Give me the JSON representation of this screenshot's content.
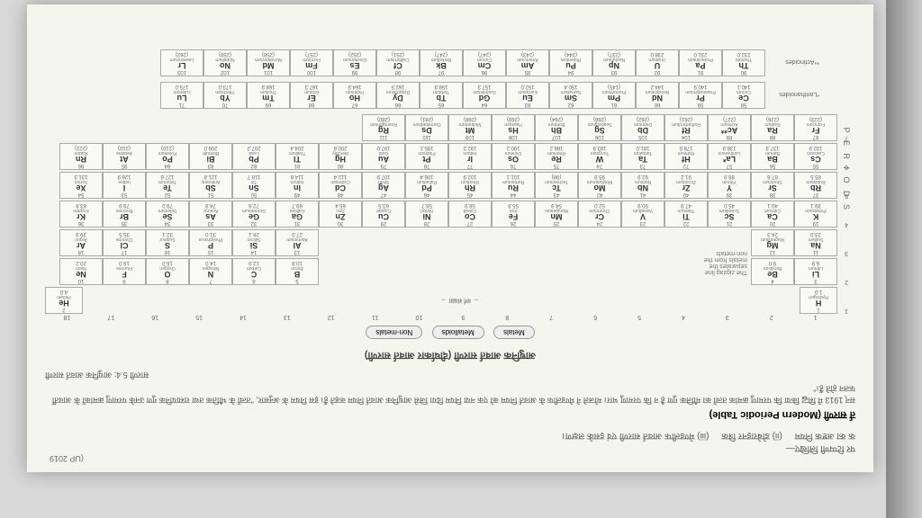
{
  "header": {
    "right_ref": "(UP 2019",
    "line1": "पर टिप्पणी लिखिए—",
    "line2_a": "क का अष्टक नियम",
    "line2_b": "(ii) डोबेराइनर त्रिक",
    "line2_c": "(iii) मेण्डलीफ आवर्त सारणी एवं इसके लक्षण।"
  },
  "section": {
    "heading": "र्त सारणी (Modern Periodic Table)",
    "para": "सन् 1913 में सिद्ध किया कि परमाणु क्रमांक तत्वों का मौलिक गुण है न कि परमाणु भार। मोजले ने मेण्डलीफ के आवर्त नियम को एक नया नियम दिया जिसे आधुनिक आवर्त नियम कहते हैं। इस नियम के अनुसार, \"तत्वों के भौतिक तथा रासायनिक गुण उनके परमाणु क्रमांकों के आवर्ती फलन होते हैं।\"",
    "table_title": "सारणी 5.4: आधुनिक आवर्त सारणी",
    "periodic_title": "आधुनिक आवर्त सारणी (दीर्घाकार आवर्त सारणी)"
  },
  "legend": {
    "metals": "Metals",
    "metalloids": "Metalloids",
    "nonmetals": "Non-metals"
  },
  "zigzag": "The zigzag line separates the metals from the non-metals",
  "side": {
    "periods": "P E R I O D S",
    "group_label": "वर्ग संख्या",
    "lanth": "*Lanthanoides",
    "actin": "**Actinoides",
    "metals_label": "Metals",
    "nonmetals_label": "Non-Metals"
  },
  "groups": [
    "1",
    "2",
    "3",
    "4",
    "5",
    "6",
    "7",
    "8",
    "9",
    "10",
    "11",
    "12",
    "13",
    "14",
    "15",
    "16",
    "17",
    "18"
  ],
  "periods": [
    "1",
    "2",
    "3",
    "4",
    "5",
    "6",
    "7"
  ],
  "elements": {
    "r1": [
      {
        "n": "1",
        "s": "H",
        "m": "Hydrogen",
        "w": "1.0"
      },
      null,
      null,
      null,
      null,
      null,
      null,
      null,
      null,
      null,
      null,
      null,
      null,
      null,
      null,
      null,
      null,
      {
        "n": "2",
        "s": "He",
        "m": "Helium",
        "w": "4.0"
      }
    ],
    "r2": [
      {
        "n": "3",
        "s": "Li",
        "m": "Lithium",
        "w": "6.9"
      },
      {
        "n": "4",
        "s": "Be",
        "m": "Beryllium",
        "w": "9.0"
      },
      null,
      null,
      null,
      null,
      null,
      null,
      null,
      null,
      null,
      null,
      {
        "n": "5",
        "s": "B",
        "m": "Boron",
        "w": "10.8"
      },
      {
        "n": "6",
        "s": "C",
        "m": "Carbon",
        "w": "12.0"
      },
      {
        "n": "7",
        "s": "N",
        "m": "Nitrogen",
        "w": "14.0"
      },
      {
        "n": "8",
        "s": "O",
        "m": "Oxygen",
        "w": "16.0"
      },
      {
        "n": "9",
        "s": "F",
        "m": "Fluorine",
        "w": "19.0"
      },
      {
        "n": "10",
        "s": "Ne",
        "m": "Neon",
        "w": "20.2"
      }
    ],
    "r3": [
      {
        "n": "11",
        "s": "Na",
        "m": "Sodium",
        "w": "23.0"
      },
      {
        "n": "12",
        "s": "Mg",
        "m": "Magnesium",
        "w": "24.3"
      },
      null,
      null,
      null,
      null,
      null,
      null,
      null,
      null,
      null,
      null,
      {
        "n": "13",
        "s": "Al",
        "m": "Aluminium",
        "w": "27.0"
      },
      {
        "n": "14",
        "s": "Si",
        "m": "Silicon",
        "w": "28.1"
      },
      {
        "n": "15",
        "s": "P",
        "m": "Phosphorus",
        "w": "31.0"
      },
      {
        "n": "16",
        "s": "S",
        "m": "Sulphur",
        "w": "32.1"
      },
      {
        "n": "17",
        "s": "Cl",
        "m": "Chlorine",
        "w": "35.5"
      },
      {
        "n": "18",
        "s": "Ar",
        "m": "Argon",
        "w": "39.9"
      }
    ],
    "r4": [
      {
        "n": "19",
        "s": "K",
        "m": "Potassium",
        "w": "39.1"
      },
      {
        "n": "20",
        "s": "Ca",
        "m": "Calcium",
        "w": "40.1"
      },
      {
        "n": "21",
        "s": "Sc",
        "m": "Scandium",
        "w": "45.0"
      },
      {
        "n": "22",
        "s": "Ti",
        "m": "Titanium",
        "w": "47.9"
      },
      {
        "n": "23",
        "s": "V",
        "m": "Vanadium",
        "w": "50.9"
      },
      {
        "n": "24",
        "s": "Cr",
        "m": "Chromium",
        "w": "52.0"
      },
      {
        "n": "25",
        "s": "Mn",
        "m": "Manganese",
        "w": "54.9"
      },
      {
        "n": "26",
        "s": "Fe",
        "m": "Iron",
        "w": "55.8"
      },
      {
        "n": "27",
        "s": "Co",
        "m": "Cobalt",
        "w": "58.9"
      },
      {
        "n": "28",
        "s": "Ni",
        "m": "Nickel",
        "w": "58.7"
      },
      {
        "n": "29",
        "s": "Cu",
        "m": "Copper",
        "w": "63.5"
      },
      {
        "n": "30",
        "s": "Zn",
        "m": "Zinc",
        "w": "65.4"
      },
      {
        "n": "31",
        "s": "Ga",
        "m": "Gallium",
        "w": "69.7"
      },
      {
        "n": "32",
        "s": "Ge",
        "m": "Germanium",
        "w": "72.6"
      },
      {
        "n": "33",
        "s": "As",
        "m": "Arsenic",
        "w": "74.9"
      },
      {
        "n": "34",
        "s": "Se",
        "m": "Selenium",
        "w": "79.0"
      },
      {
        "n": "35",
        "s": "Br",
        "m": "Bromine",
        "w": "79.9"
      },
      {
        "n": "36",
        "s": "Kr",
        "m": "Krypton",
        "w": "83.8"
      }
    ],
    "r5": [
      {
        "n": "37",
        "s": "Rb",
        "m": "Rubidium",
        "w": "85.5"
      },
      {
        "n": "38",
        "s": "Sr",
        "m": "Strontium",
        "w": "87.6"
      },
      {
        "n": "39",
        "s": "Y",
        "m": "Yttrium",
        "w": "88.9"
      },
      {
        "n": "40",
        "s": "Zr",
        "m": "Zirconium",
        "w": "91.2"
      },
      {
        "n": "41",
        "s": "Nb",
        "m": "Niobium",
        "w": "92.9"
      },
      {
        "n": "42",
        "s": "Mo",
        "m": "Molybdenum",
        "w": "95.9"
      },
      {
        "n": "43",
        "s": "Tc",
        "m": "Technetium",
        "w": "(98)"
      },
      {
        "n": "44",
        "s": "Ru",
        "m": "Ruthenium",
        "w": "101.1"
      },
      {
        "n": "45",
        "s": "Rh",
        "m": "Rhodium",
        "w": "102.9"
      },
      {
        "n": "46",
        "s": "Pd",
        "m": "Palladium",
        "w": "106.4"
      },
      {
        "n": "47",
        "s": "Ag",
        "m": "Silver",
        "w": "107.9"
      },
      {
        "n": "48",
        "s": "Cd",
        "m": "Cadmium",
        "w": "112.4"
      },
      {
        "n": "49",
        "s": "In",
        "m": "Indium",
        "w": "114.8"
      },
      {
        "n": "50",
        "s": "Sn",
        "m": "Tin",
        "w": "118.7"
      },
      {
        "n": "51",
        "s": "Sb",
        "m": "Antimony",
        "w": "121.8"
      },
      {
        "n": "52",
        "s": "Te",
        "m": "Tellurium",
        "w": "127.6"
      },
      {
        "n": "53",
        "s": "I",
        "m": "Iodine",
        "w": "126.9"
      },
      {
        "n": "54",
        "s": "Xe",
        "m": "Xenon",
        "w": "131.3"
      }
    ],
    "r6": [
      {
        "n": "55",
        "s": "Cs",
        "m": "Caesium",
        "w": "132.9"
      },
      {
        "n": "56",
        "s": "Ba",
        "m": "Barium",
        "w": "137.3"
      },
      {
        "n": "57",
        "s": "La*",
        "m": "Lanthanum",
        "w": "138.9"
      },
      {
        "n": "72",
        "s": "Hf",
        "m": "Hafnium",
        "w": "178.5"
      },
      {
        "n": "73",
        "s": "Ta",
        "m": "Tantalum",
        "w": "181.0"
      },
      {
        "n": "74",
        "s": "W",
        "m": "Tungsten",
        "w": "183.9"
      },
      {
        "n": "75",
        "s": "Re",
        "m": "Rhenium",
        "w": "186.2"
      },
      {
        "n": "76",
        "s": "Os",
        "m": "Osmium",
        "w": "190.2"
      },
      {
        "n": "77",
        "s": "Ir",
        "m": "Iridium",
        "w": "192.2"
      },
      {
        "n": "78",
        "s": "Pt",
        "m": "Platinum",
        "w": "195.1"
      },
      {
        "n": "79",
        "s": "Au",
        "m": "Gold",
        "w": "197.0"
      },
      {
        "n": "80",
        "s": "Hg",
        "m": "Mercury",
        "w": "200.6"
      },
      {
        "n": "81",
        "s": "Tl",
        "m": "Thallium",
        "w": "204.4"
      },
      {
        "n": "82",
        "s": "Pb",
        "m": "Lead",
        "w": "207.2"
      },
      {
        "n": "83",
        "s": "Bi",
        "m": "Bismuth",
        "w": "209.0"
      },
      {
        "n": "84",
        "s": "Po",
        "m": "Polonium",
        "w": "(210)"
      },
      {
        "n": "85",
        "s": "At",
        "m": "Astatine",
        "w": "(210)"
      },
      {
        "n": "86",
        "s": "Rn",
        "m": "Radon",
        "w": "(222)"
      }
    ],
    "r7": [
      {
        "n": "87",
        "s": "Fr",
        "m": "Francium",
        "w": "(223)"
      },
      {
        "n": "88",
        "s": "Ra",
        "m": "Radium",
        "w": "(226)"
      },
      {
        "n": "89",
        "s": "Ac**",
        "m": "Actinium",
        "w": "(227)"
      },
      {
        "n": "104",
        "s": "Rf",
        "m": "Rutherfordium",
        "w": "(261)"
      },
      {
        "n": "105",
        "s": "Db",
        "m": "Dubnium",
        "w": "(262)"
      },
      {
        "n": "106",
        "s": "Sg",
        "m": "Seaborgium",
        "w": "(266)"
      },
      {
        "n": "107",
        "s": "Bh",
        "m": "Bohrium",
        "w": "(264)"
      },
      {
        "n": "108",
        "s": "Hs",
        "m": "Hassium",
        "w": "(269)"
      },
      {
        "n": "109",
        "s": "Mt",
        "m": "Meitnerium",
        "w": "(268)"
      },
      {
        "n": "110",
        "s": "Ds",
        "m": "Darmstadtium",
        "w": "(281)"
      },
      {
        "n": "111",
        "s": "Rg",
        "m": "Roentgenium",
        "w": "(280)"
      },
      null,
      null,
      null,
      null,
      null,
      null,
      null
    ],
    "lanth": [
      {
        "n": "58",
        "s": "Ce",
        "m": "Cerium",
        "w": "140.1"
      },
      {
        "n": "59",
        "s": "Pr",
        "m": "Praseodymium",
        "w": "140.9"
      },
      {
        "n": "60",
        "s": "Nd",
        "m": "Neodymium",
        "w": "144.2"
      },
      {
        "n": "61",
        "s": "Pm",
        "m": "Promethium",
        "w": "(145)"
      },
      {
        "n": "62",
        "s": "Sm",
        "m": "Samarium",
        "w": "150.4"
      },
      {
        "n": "63",
        "s": "Eu",
        "m": "Europium",
        "w": "152.0"
      },
      {
        "n": "64",
        "s": "Gd",
        "m": "Gadolinium",
        "w": "157.3"
      },
      {
        "n": "65",
        "s": "Tb",
        "m": "Terbium",
        "w": "158.9"
      },
      {
        "n": "66",
        "s": "Dy",
        "m": "Dysprosium",
        "w": "162.5"
      },
      {
        "n": "67",
        "s": "Ho",
        "m": "Holmium",
        "w": "164.9"
      },
      {
        "n": "68",
        "s": "Er",
        "m": "Erbium",
        "w": "167.3"
      },
      {
        "n": "69",
        "s": "Tm",
        "m": "Thulium",
        "w": "168.9"
      },
      {
        "n": "70",
        "s": "Yb",
        "m": "Ytterbium",
        "w": "173.0"
      },
      {
        "n": "71",
        "s": "Lu",
        "m": "Lutetium",
        "w": "175.0"
      }
    ],
    "actin": [
      {
        "n": "90",
        "s": "Th",
        "m": "Thorium",
        "w": "232.0"
      },
      {
        "n": "91",
        "s": "Pa",
        "m": "Protactinium",
        "w": "231.0"
      },
      {
        "n": "92",
        "s": "U",
        "m": "Uranium",
        "w": "238.0"
      },
      {
        "n": "93",
        "s": "Np",
        "m": "Neptunium",
        "w": "(237)"
      },
      {
        "n": "94",
        "s": "Pu",
        "m": "Plutonium",
        "w": "(244)"
      },
      {
        "n": "95",
        "s": "Am",
        "m": "Americium",
        "w": "(243)"
      },
      {
        "n": "96",
        "s": "Cm",
        "m": "Curium",
        "w": "(247)"
      },
      {
        "n": "97",
        "s": "Bk",
        "m": "Berkelium",
        "w": "(247)"
      },
      {
        "n": "98",
        "s": "Cf",
        "m": "Californium",
        "w": "(251)"
      },
      {
        "n": "99",
        "s": "Es",
        "m": "Einsteinium",
        "w": "(252)"
      },
      {
        "n": "100",
        "s": "Fm",
        "m": "Fermium",
        "w": "(257)"
      },
      {
        "n": "101",
        "s": "Md",
        "m": "Mendelevium",
        "w": "(258)"
      },
      {
        "n": "102",
        "s": "No",
        "m": "Nobelium",
        "w": "(259)"
      },
      {
        "n": "103",
        "s": "Lr",
        "m": "Lawrencium",
        "w": "(262)"
      }
    ]
  },
  "arrow_label": "वर्ग संख्या"
}
